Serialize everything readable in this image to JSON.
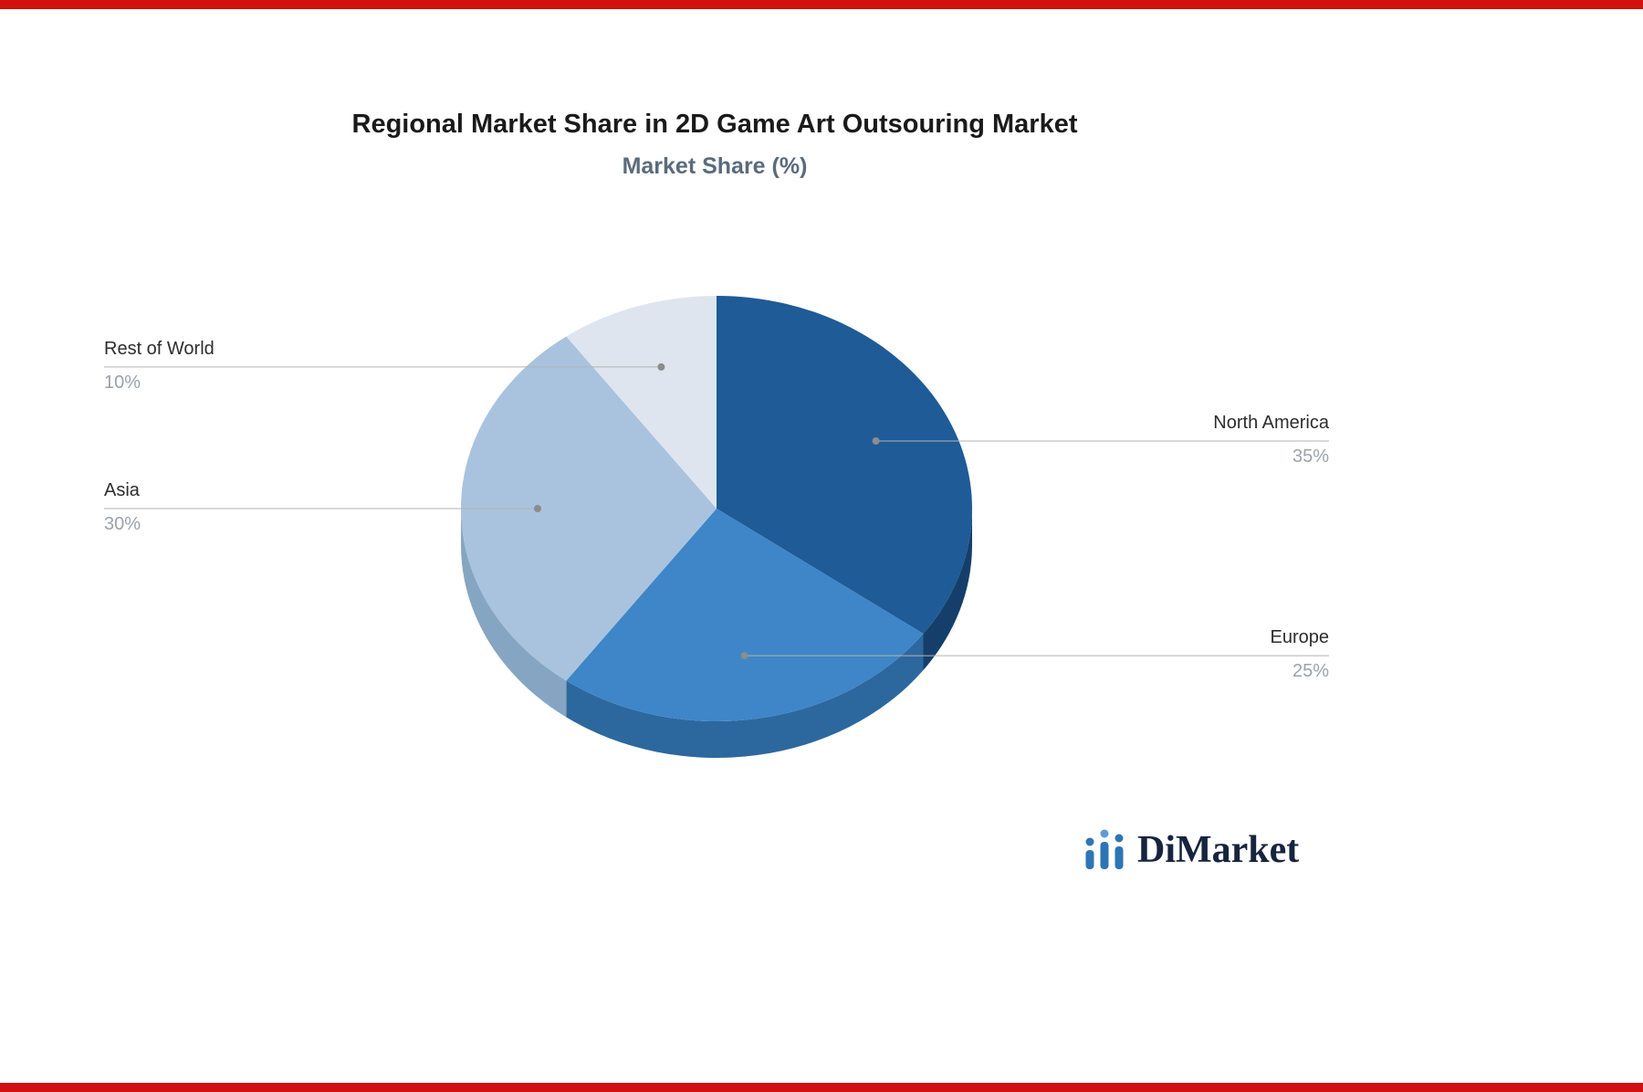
{
  "page": {
    "background_color": "#ffffff",
    "accent_bar_color": "#d21010"
  },
  "header": {
    "title": "Regional Market Share in 2D Game Art Outsouring Market",
    "subtitle": "Market Share (%)"
  },
  "chart_data": {
    "type": "pie",
    "style": "3d",
    "title": "Regional Market Share in 2D Game Art Outsouring Market",
    "subtitle": "Market Share (%)",
    "unit": "%",
    "direction": "clockwise",
    "start_angle": "top",
    "legend_position": "none",
    "slices": [
      {
        "name": "North America",
        "value": 35,
        "display": "35%",
        "color": "#1e5b97",
        "side_color": "#153f6a",
        "label_side": "right"
      },
      {
        "name": "Europe",
        "value": 25,
        "display": "25%",
        "color": "#3e86c8",
        "side_color": "#2c689e",
        "label_side": "right"
      },
      {
        "name": "Asia",
        "value": 30,
        "display": "30%",
        "color": "#a9c3de",
        "side_color": "#86a5c3",
        "label_side": "left"
      },
      {
        "name": "Rest of World",
        "value": 10,
        "display": "10%",
        "color": "#dee5ef",
        "side_color": "#b8c3d4",
        "label_side": "left"
      }
    ]
  },
  "brand": {
    "name": "DiMarket",
    "icon": "bar-chart-icon",
    "icon_color": "#2e75b6",
    "text_color": "#16243e"
  }
}
